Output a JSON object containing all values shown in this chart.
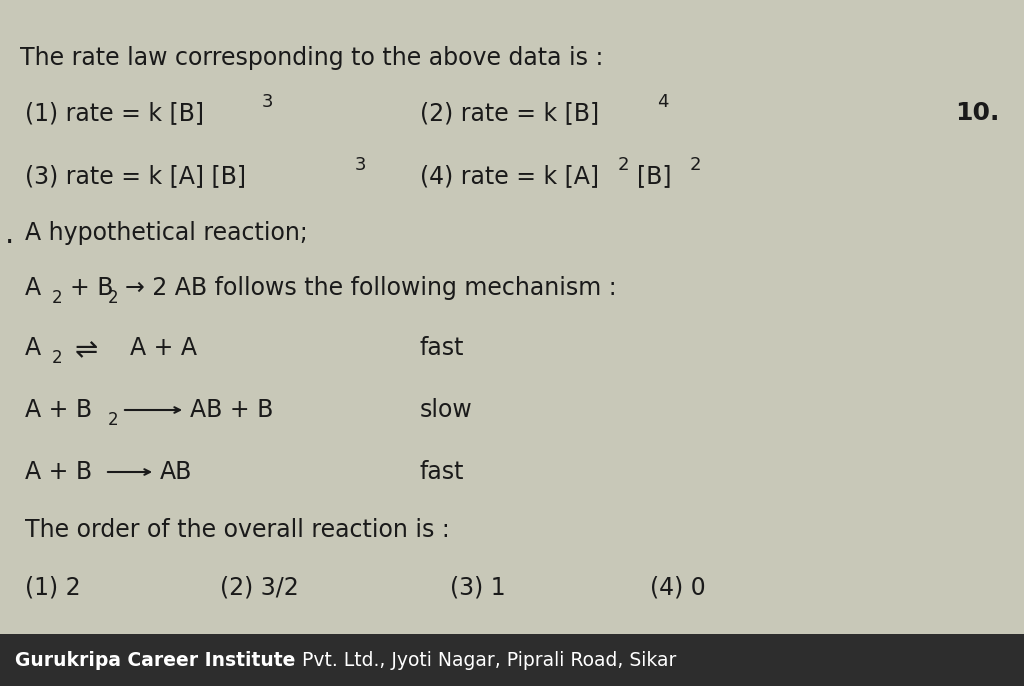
{
  "bg_color": "#c8c8b8",
  "footer_bg": "#2d2d2d",
  "text_color": "#1a1a1a",
  "footer_text_color": "#ffffff",
  "footer_bold": "Gurukripa Career Institute",
  "footer_normal": " Pvt. Ltd., Jyoti Nagar, Piprali Road, Sikar",
  "line0": "The rate law corresponding to the above data is :",
  "q_num": "10.",
  "intro": "A hypothetical reaction;",
  "order_q": "The order of the overall reaction is :",
  "ans1": "(1) 2",
  "ans2": "(2) 3/2",
  "ans3": "(3) 1",
  "ans4": "(4) 0",
  "font_size_main": 17,
  "font_size_footer": 14
}
